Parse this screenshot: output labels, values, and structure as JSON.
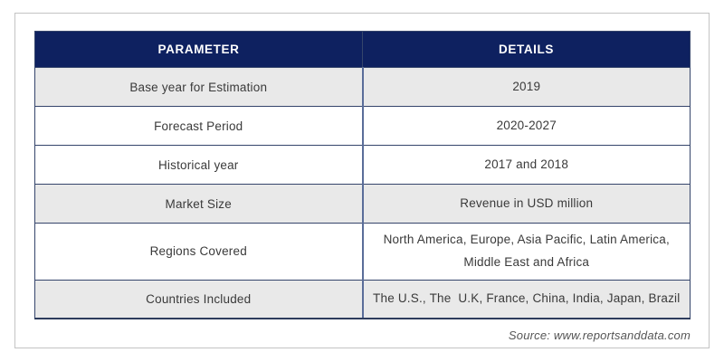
{
  "table": {
    "columns": [
      "PARAMETER",
      "DETAILS"
    ],
    "rows": [
      {
        "parameter": "Base year for Estimation",
        "details": "2019"
      },
      {
        "parameter": "Forecast Period",
        "details": "2020-2027"
      },
      {
        "parameter": "Historical year",
        "details": "2017 and 2018"
      },
      {
        "parameter": "Market Size",
        "details": "Revenue in USD million"
      },
      {
        "parameter": "Regions Covered",
        "details": "North America, Europe, Asia Pacific, Latin America, Middle East and Africa"
      },
      {
        "parameter": "Countries Included",
        "details": "The U.S., The  U.K, France, China, India, Japan, Brazil"
      }
    ]
  },
  "source": {
    "text": "Source: www.reportsanddata.com"
  },
  "colors": {
    "header_bg": "#0e2160",
    "header_text": "#ffffff",
    "shaded_row_bg": "#e9e9e9",
    "row_text": "#3a3a3a",
    "table_border": "#35456b",
    "column_divider": "#5a6d99",
    "frame_border": "#c3c3c3",
    "source_text": "#565656"
  }
}
